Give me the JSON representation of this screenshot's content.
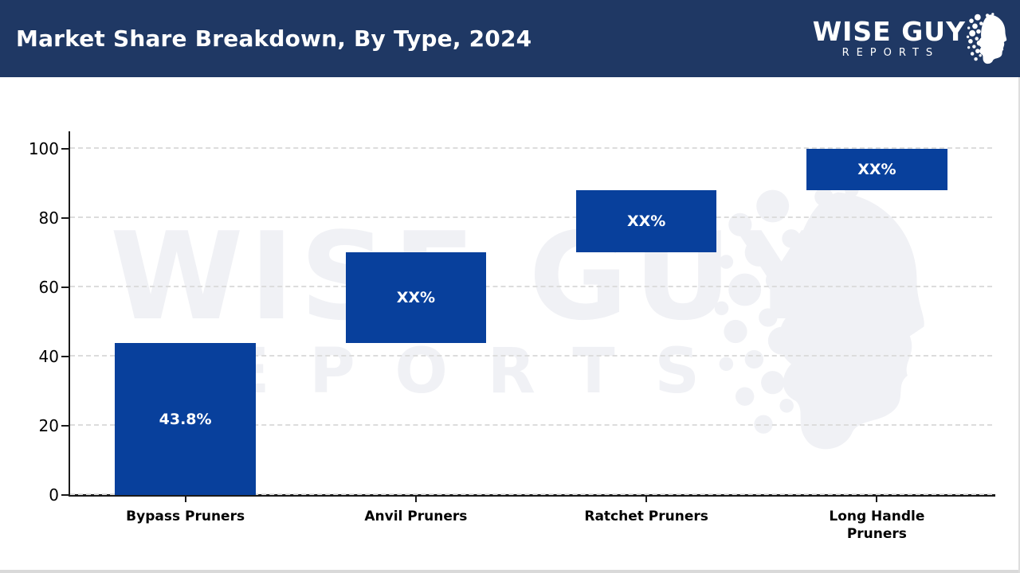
{
  "header": {
    "title": "Market Share Breakdown, By Type, 2024",
    "logo": {
      "line1": "WISE GUY",
      "line2": "REPORTS"
    }
  },
  "watermark": {
    "line1": "WISE GUY",
    "line2": "REPORTS"
  },
  "colors": {
    "header_bg": "#1f3864",
    "bar": "#08409c",
    "grid": "#dcdcdc",
    "axis": "#1a1a1a",
    "bar_label": "#ffffff",
    "watermark": "#f0f1f5"
  },
  "chart_data": {
    "type": "bar",
    "subtype": "waterfall",
    "title": "Market Share Breakdown, By Type, 2024",
    "categories": [
      "Bypass Pruners",
      "Anvil Pruners",
      "Ratchet Pruners",
      "Long Handle Pruners"
    ],
    "segments": [
      {
        "category": "Bypass Pruners",
        "start": 0,
        "end": 43.8,
        "label": "43.8%"
      },
      {
        "category": "Anvil Pruners",
        "start": 43.8,
        "end": 70,
        "label": "XX%"
      },
      {
        "category": "Ratchet Pruners",
        "start": 70,
        "end": 88,
        "label": "XX%"
      },
      {
        "category": "Long Handle Pruners",
        "start": 88,
        "end": 100,
        "label": "XX%"
      }
    ],
    "yticks": [
      0,
      20,
      40,
      60,
      80,
      100
    ],
    "ylim": [
      0,
      105
    ],
    "xlabel": "",
    "ylabel": "",
    "grid": "horizontal-dashed",
    "legend": "none"
  }
}
